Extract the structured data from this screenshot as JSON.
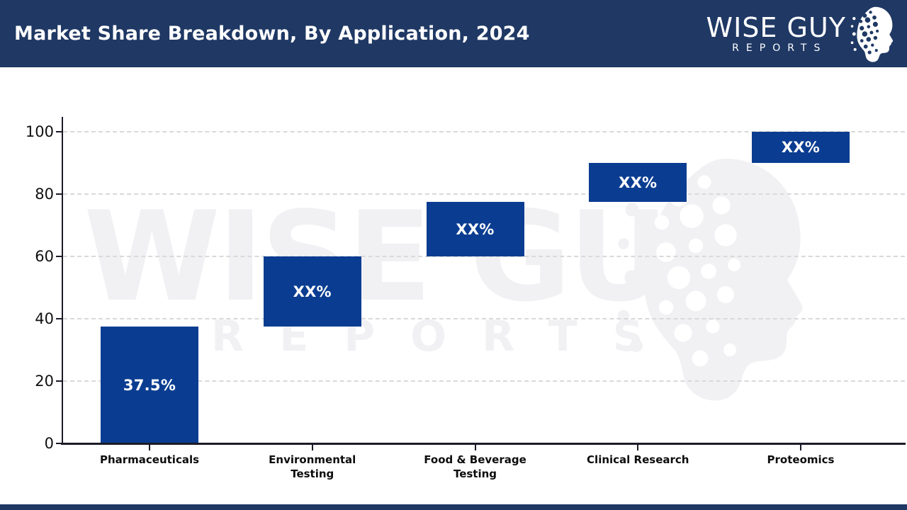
{
  "header": {
    "title": "Market Share Breakdown, By Application, 2024",
    "logo": {
      "wordmark": "WISE GUY",
      "sub": "REPORTS"
    }
  },
  "watermark": {
    "wordmark": "WISE GUY",
    "sub": "REPORTS"
  },
  "colors": {
    "header_bg": "#1f3864",
    "footer_bg": "#1f3864",
    "bar": "#0a3d91",
    "bar_label": "#ffffff",
    "watermark": "#f1f1f4",
    "grid": "#d9d9d9",
    "axis": "#1b1b28"
  },
  "chart_data": {
    "type": "bar",
    "variant": "waterfall",
    "title": "Market Share Breakdown, By Application, 2024",
    "categories": [
      "Pharmaceuticals",
      "Environmental\nTesting",
      "Food & Beverage\nTesting",
      "Clinical Research",
      "Proteomics"
    ],
    "segments": [
      {
        "category": "Pharmaceuticals",
        "start": 0,
        "end": 37.5,
        "value": 37.5,
        "label": "37.5%"
      },
      {
        "category": "Environmental Testing",
        "start": 37.5,
        "end": 60,
        "value": 22.5,
        "label": "XX%"
      },
      {
        "category": "Food & Beverage Testing",
        "start": 60,
        "end": 77.5,
        "value": 17.5,
        "label": "XX%"
      },
      {
        "category": "Clinical Research",
        "start": 77.5,
        "end": 90,
        "value": 12.5,
        "label": "XX%"
      },
      {
        "category": "Proteomics",
        "start": 90,
        "end": 100,
        "value": 10,
        "label": "XX%"
      }
    ],
    "yticks": [
      0,
      20,
      40,
      60,
      80,
      100
    ],
    "ylim": [
      0,
      105
    ],
    "xlabel": "",
    "ylabel": "",
    "grid": {
      "axis": "y",
      "style": "dashed"
    },
    "legend": null
  }
}
